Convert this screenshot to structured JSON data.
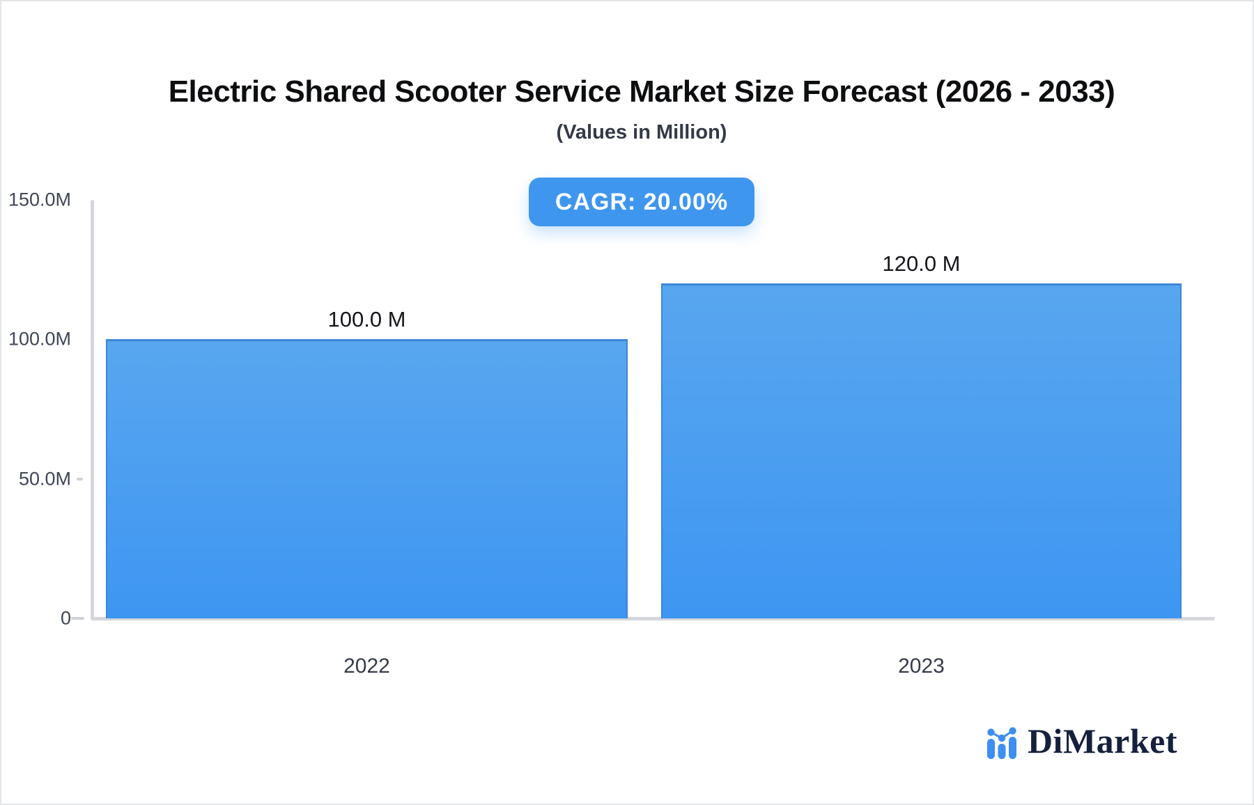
{
  "header": {
    "title": "Electric Shared Scooter Service Market Size Forecast (2026 - 2033)",
    "subtitle": "(Values in Million)"
  },
  "badge": {
    "label": "CAGR: 20.00%",
    "background": "#3E96EF",
    "text_color": "#ffffff"
  },
  "chart_data": {
    "type": "bar",
    "categories": [
      "2022",
      "2023"
    ],
    "values": [
      100.0,
      120.0
    ],
    "value_labels": [
      "100.0 M",
      "120.0 M"
    ],
    "title": "Electric Shared Scooter Service Market Size Forecast (2026 - 2033)",
    "subtitle": "(Values in Million)",
    "unit": "Million",
    "cagr": "20.00%",
    "xlabel": "",
    "ylabel": "",
    "ylim": [
      0,
      150
    ],
    "grid": false,
    "legend": "none",
    "y_ticks": [
      {
        "value": 150,
        "label": "150.0M"
      },
      {
        "value": 100,
        "label": "100.0M"
      },
      {
        "value": 50,
        "label": "50.0M"
      },
      {
        "value": 0,
        "label": "0"
      }
    ],
    "bar_color_top": "#58a6ef",
    "bar_color_bottom": "#3e96f2",
    "bar_border_color": "#3c86d8",
    "axis_color": "#d4d6db"
  },
  "logo": {
    "text": "DiMarket",
    "icon": "bar-chart-logo-icon",
    "icon_color": "#3d8ef0",
    "text_color": "#15203c"
  }
}
